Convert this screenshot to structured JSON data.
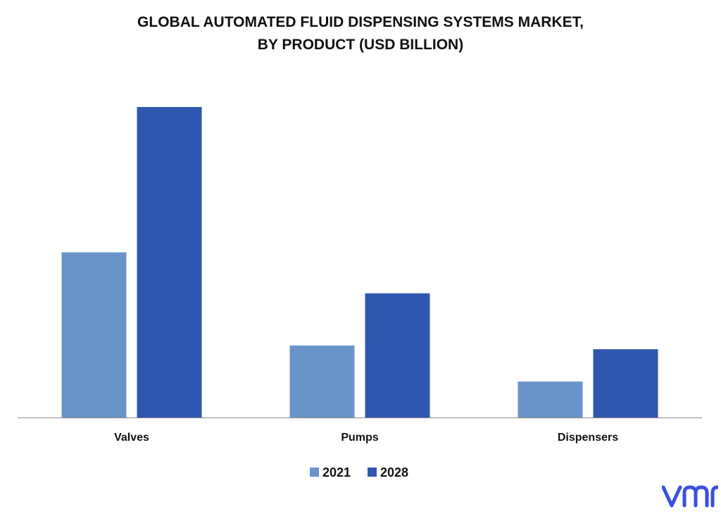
{
  "title_line1": "GLOBAL AUTOMATED FLUID DISPENSING SYSTEMS MARKET,",
  "title_line2": "BY PRODUCT (USD BILLION)",
  "logo_text": "vmr",
  "chart_data": {
    "type": "bar",
    "title": "GLOBAL AUTOMATED FLUID DISPENSING SYSTEMS MARKET, BY PRODUCT (USD BILLION)",
    "categories": [
      "Valves",
      "Pumps",
      "Dispensers"
    ],
    "series": [
      {
        "name": "2021",
        "values": [
          2.66,
          1.16,
          0.58
        ],
        "color": "#6a94c9"
      },
      {
        "name": "2028",
        "values": [
          5.0,
          2.0,
          1.1
        ],
        "color": "#2f57b0"
      }
    ],
    "ylim": [
      0,
      5
    ],
    "grid": false,
    "legend": "bottom-center",
    "y_axis_visible": false
  },
  "colors": {
    "axis": "#8c8c8c",
    "logo": "#3b4fe0",
    "text": "#111111"
  }
}
